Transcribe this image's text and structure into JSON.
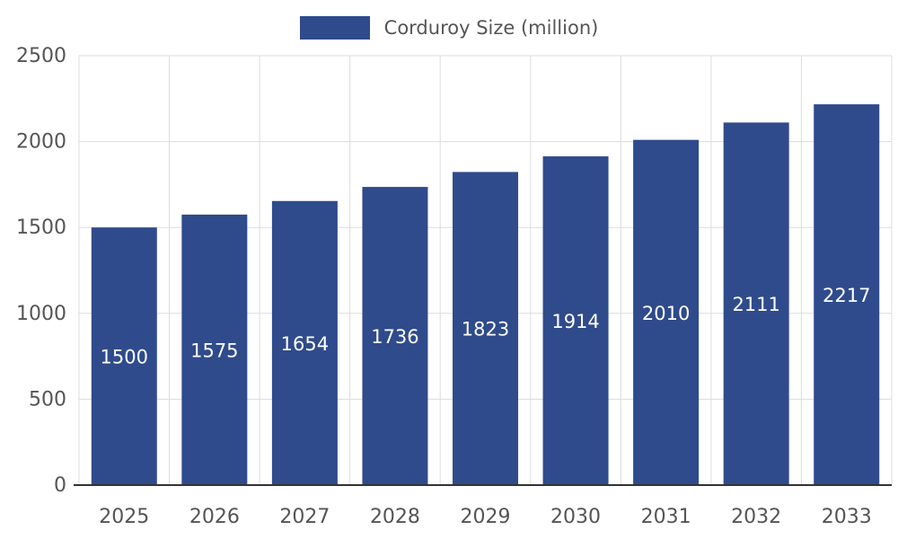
{
  "chart_data": {
    "type": "bar",
    "title": "Corduroy Size (million)",
    "legend": {
      "label": "Corduroy Size (million)",
      "position": "top-center"
    },
    "categories": [
      "2025",
      "2026",
      "2027",
      "2028",
      "2029",
      "2030",
      "2031",
      "2032",
      "2033"
    ],
    "values": [
      1500,
      1575,
      1654,
      1736,
      1823,
      1914,
      2010,
      2111,
      2217
    ],
    "xlabel": "",
    "ylabel": "",
    "ylim": [
      0,
      2500
    ],
    "yticks": [
      0,
      500,
      1000,
      1500,
      2000,
      2500
    ],
    "grid": true,
    "value_labels": "inside-middle",
    "colors": {
      "bar": "#2f4b8c",
      "value_label": "#ffffff",
      "axis_text": "#555555",
      "grid_line": "#dcdcdc",
      "axis_line": "#333333",
      "background": "#ffffff"
    }
  }
}
